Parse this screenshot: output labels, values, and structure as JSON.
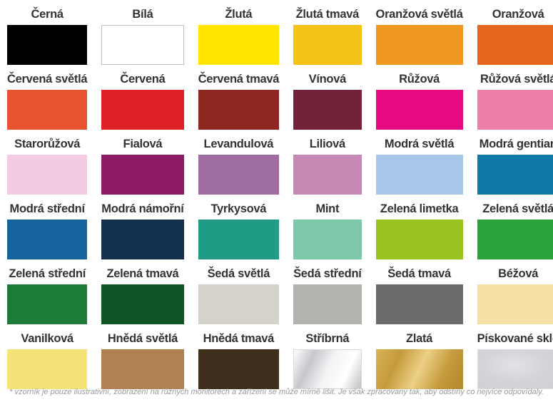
{
  "palette": {
    "swatches": [
      {
        "label": "Černá",
        "color": "#000000"
      },
      {
        "label": "Bílá",
        "color": "#ffffff",
        "border": "#bfbfbf"
      },
      {
        "label": "Žlutá",
        "color": "#ffe500"
      },
      {
        "label": "Žlutá tmavá",
        "color": "#f5c318"
      },
      {
        "label": "Oranžová světlá",
        "color": "#ef981f"
      },
      {
        "label": "Oranžová",
        "color": "#e6661e"
      },
      {
        "label": "Červená světlá",
        "color": "#e75231"
      },
      {
        "label": "Červená",
        "color": "#de2027"
      },
      {
        "label": "Červená tmavá",
        "color": "#8e2622"
      },
      {
        "label": "Vínová",
        "color": "#732338"
      },
      {
        "label": "Růžová",
        "color": "#e60a80"
      },
      {
        "label": "Růžová světlá",
        "color": "#ee7fab"
      },
      {
        "label": "Starorůžová",
        "color": "#f5cbe1"
      },
      {
        "label": "Fialová",
        "color": "#8d1a62"
      },
      {
        "label": "Levandulová",
        "color": "#9f6da1"
      },
      {
        "label": "Liliová",
        "color": "#c788b5"
      },
      {
        "label": "Modrá světlá",
        "color": "#a7c7e9"
      },
      {
        "label": "Modrá gentian",
        "color": "#1079a6"
      },
      {
        "label": "Modrá střední",
        "color": "#17639d"
      },
      {
        "label": "Modrá námořní",
        "color": "#13304f"
      },
      {
        "label": "Tyrkysová",
        "color": "#209c84"
      },
      {
        "label": "Mint",
        "color": "#7ec7a8"
      },
      {
        "label": "Zelená limetka",
        "color": "#9ac31f"
      },
      {
        "label": "Zelená světlá",
        "color": "#2aa33a"
      },
      {
        "label": "Zelená střední",
        "color": "#1d7b39"
      },
      {
        "label": "Zelená tmavá",
        "color": "#0e5526"
      },
      {
        "label": "Šedá světlá",
        "color": "#d5d2ca"
      },
      {
        "label": "Šedá střední",
        "color": "#b4b2ae"
      },
      {
        "label": "Šedá tmavá",
        "color": "#6b6b6b"
      },
      {
        "label": "Béžová",
        "color": "#f4e1a3"
      },
      {
        "label": "Vanilková",
        "color": "#f3e379"
      },
      {
        "label": "Hnědá světlá",
        "color": "#b18152"
      },
      {
        "label": "Hnědá tmavá",
        "color": "#3e301d"
      },
      {
        "label": "Stříbrná",
        "gradient": {
          "type": "linear",
          "angle": "115deg",
          "stops": [
            "#ffffff",
            "#c6c7cb",
            "#f2f3f4",
            "#ffffff",
            "#bfc0c4"
          ]
        },
        "border": "#d9d9db"
      },
      {
        "label": "Zlatá",
        "gradient": {
          "type": "linear",
          "angle": "115deg",
          "stops": [
            "#d9b257",
            "#c59a3d",
            "#ecd085",
            "#c59a3d",
            "#b3882e"
          ]
        }
      },
      {
        "label": "Pískované sklo",
        "gradient": {
          "type": "radial",
          "angle": "ellipse at 45% 40%",
          "stops": [
            "#e2e3e5",
            "#d3d4d7",
            "#cfd0d3"
          ]
        },
        "border": "#dddee0"
      }
    ]
  },
  "footer": {
    "note": "* vzorník je pouze ilustrativní, zobrazení na různých monitorech a zařízení se může mírně lišit. Je však zpracovaný tak, aby odstíny co nejvíce odpovídaly."
  }
}
